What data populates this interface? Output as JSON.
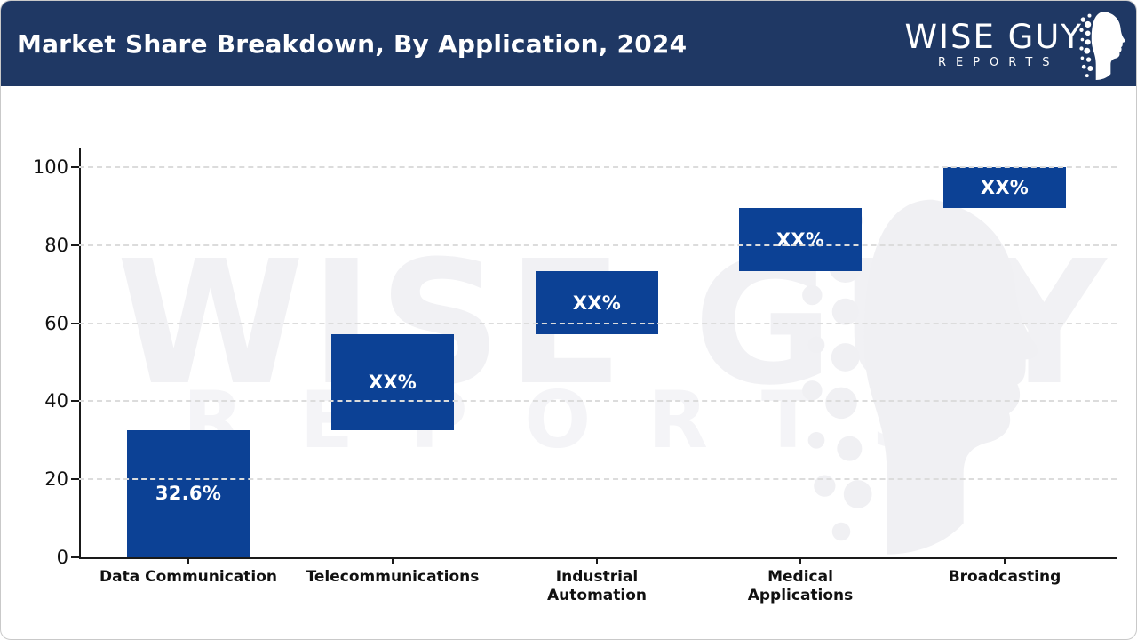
{
  "header": {
    "title": "Market Share Breakdown, By Application, 2024",
    "logo": {
      "line1": "WISE GUY",
      "line2": "REPORTS"
    }
  },
  "watermark": {
    "line1": "WISE GUY",
    "line2": "REPORTS"
  },
  "colors": {
    "header_bg": "#1f3864",
    "bar": "#0c4195",
    "bar_label_text": "#ffffff",
    "grid": "#dcdcdc",
    "axis": "#1a1a1a",
    "title_text": "#ffffff",
    "watermark": "#f1f1f4"
  },
  "chart_data": {
    "type": "bar",
    "subtype": "waterfall-floating-bars",
    "title": "Market Share Breakdown, By Application, 2024",
    "xlabel": "",
    "ylabel": "",
    "ylim": [
      0,
      100
    ],
    "yticks": [
      0,
      20,
      40,
      60,
      80,
      100
    ],
    "grid": "horizontal-dashed",
    "legend": "none",
    "categories": [
      "Data Communication",
      "Telecommunications",
      "Industrial Automation",
      "Medical Applications",
      "Broadcasting"
    ],
    "category_lines": [
      [
        "Data Communication"
      ],
      [
        "Telecommunications"
      ],
      [
        "Industrial",
        "Automation"
      ],
      [
        "Medical",
        "Applications"
      ],
      [
        "Broadcasting"
      ]
    ],
    "series": [
      {
        "name": "Market Share",
        "segments": [
          [
            0,
            32.6
          ],
          [
            32.6,
            57.2
          ],
          [
            57.2,
            73.3
          ],
          [
            73.3,
            89.5
          ],
          [
            89.5,
            100
          ]
        ],
        "values": [
          32.6,
          24.6,
          16.1,
          16.2,
          10.5
        ],
        "labels": [
          "32.6%",
          "XX%",
          "XX%",
          "XX%",
          "XX%"
        ]
      }
    ]
  }
}
